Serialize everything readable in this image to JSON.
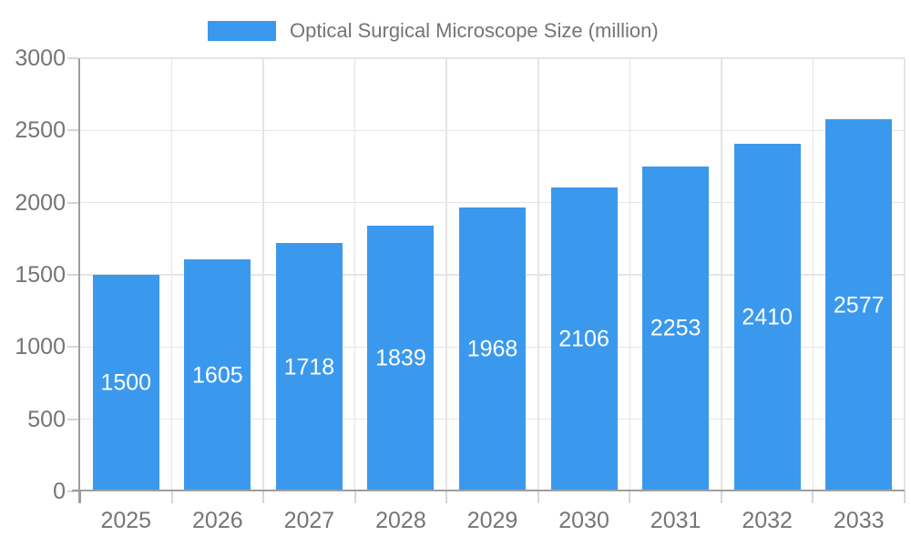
{
  "colors": {
    "bar": "#3B99ED",
    "bar_label": "#FFFFFF",
    "grid": "#E5E5E5",
    "tick": "#D6D6D6",
    "axis": "#9E9E9E",
    "axis_text": "#757575",
    "legend_text": "#757575",
    "background": "#FFFFFF"
  },
  "legend": {
    "label": "Optical Surgical Microscope Size (million)"
  },
  "chart_data": {
    "type": "bar",
    "title": "Optical Surgical Microscope Size (million)",
    "series_name": "Optical Surgical Microscope Size (million)",
    "categories": [
      "2025",
      "2026",
      "2027",
      "2028",
      "2029",
      "2030",
      "2031",
      "2032",
      "2033"
    ],
    "values": [
      1500,
      1605,
      1718,
      1839,
      1968,
      2106,
      2253,
      2410,
      2577
    ],
    "xlabel": "",
    "ylabel": "",
    "ylim": [
      0,
      3000
    ],
    "yticks": [
      0,
      500,
      1000,
      1500,
      2000,
      2500,
      3000
    ],
    "grid": true,
    "legend_position": "top",
    "value_labels": "inside-center"
  }
}
